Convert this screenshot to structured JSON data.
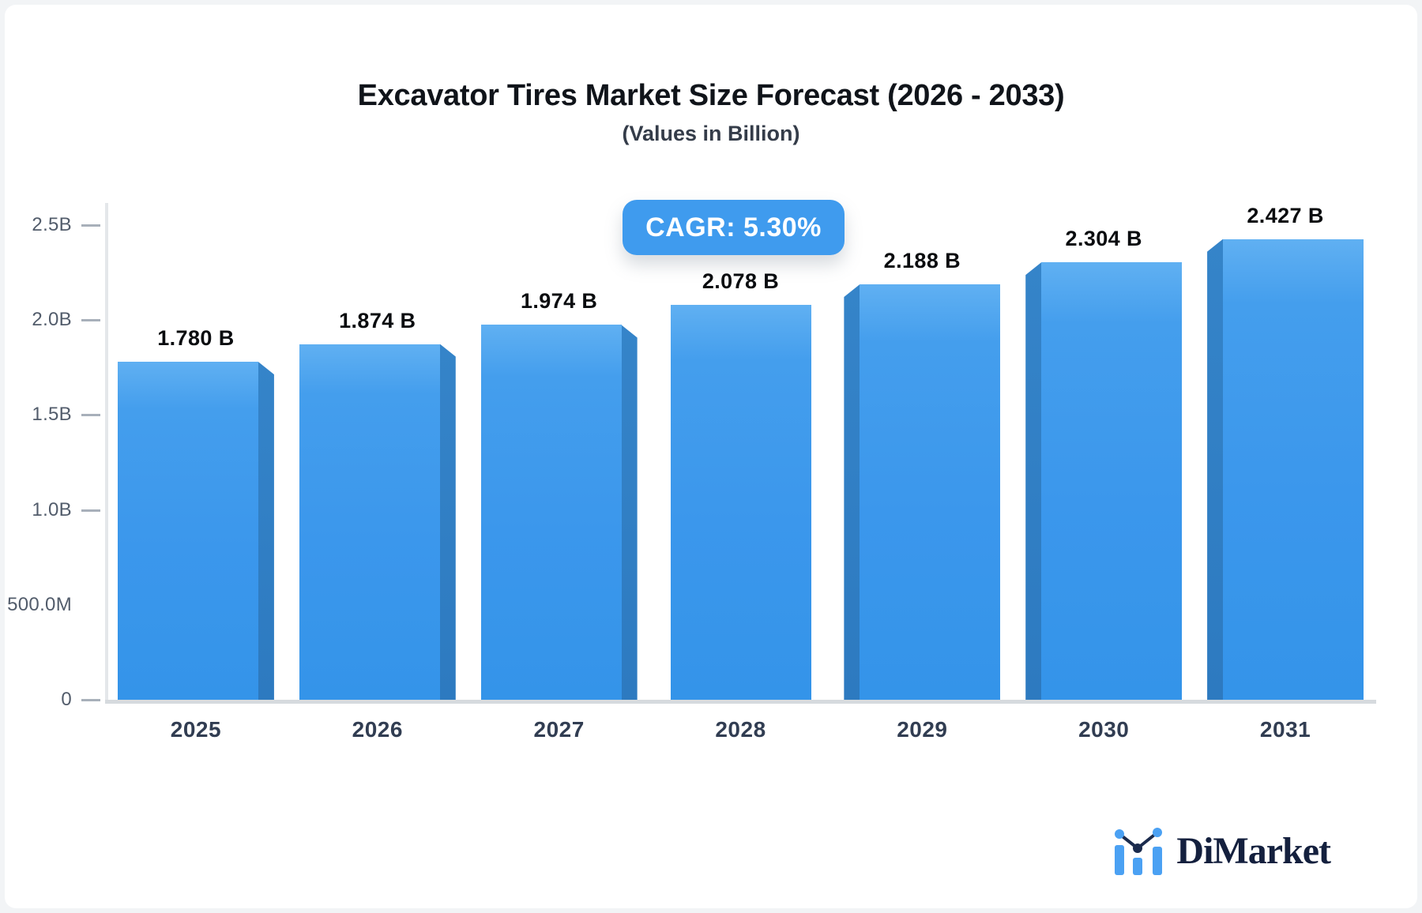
{
  "page": {
    "background": "#f2f4f6",
    "card_background": "#ffffff"
  },
  "header": {
    "title": "Excavator Tires Market Size Forecast (2026 - 2033)",
    "subtitle": "(Values in Billion)"
  },
  "badge": {
    "label": "CAGR: 5.30%",
    "color": "#3F9BEE",
    "text_color": "#ffffff"
  },
  "chart_data": {
    "type": "bar",
    "title": "Excavator Tires Market Size Forecast (2026 - 2033)",
    "subtitle": "(Values in Billion)",
    "unit": "Billion",
    "categories": [
      "2025",
      "2026",
      "2027",
      "2028",
      "2029",
      "2030",
      "2031"
    ],
    "values": [
      1.78,
      1.874,
      1.974,
      2.078,
      2.188,
      2.304,
      2.427
    ],
    "value_labels": [
      "1.780 B",
      "1.874 B",
      "1.974 B",
      "2.078 B",
      "2.188 B",
      "2.304 B",
      "2.427 B"
    ],
    "ylim": [
      0,
      2.5
    ],
    "y_ticks": [
      {
        "label": "2.5B",
        "value": 2.5,
        "tick": true
      },
      {
        "label": "2.0B",
        "value": 2.0,
        "tick": true
      },
      {
        "label": "1.5B",
        "value": 1.5,
        "tick": true
      },
      {
        "label": "1.0B",
        "value": 1.0,
        "tick": true
      },
      {
        "label": "500.0M",
        "value": 0.5,
        "tick": false
      },
      {
        "label": "0",
        "value": 0.0,
        "tick": true
      }
    ],
    "grid": false,
    "legend": "none",
    "bar_color_top": "#60b0f2",
    "bar_color_bottom": "#3494e9",
    "bar_side_color": "#2d7ac0",
    "cagr": "5.30%"
  },
  "logo": {
    "text": "DiMarket",
    "icon": "bar-chart-logo-icon",
    "text_color": "#14203e",
    "icon_color": "#4BA1F3",
    "icon_line_color": "#1b2b4d"
  }
}
